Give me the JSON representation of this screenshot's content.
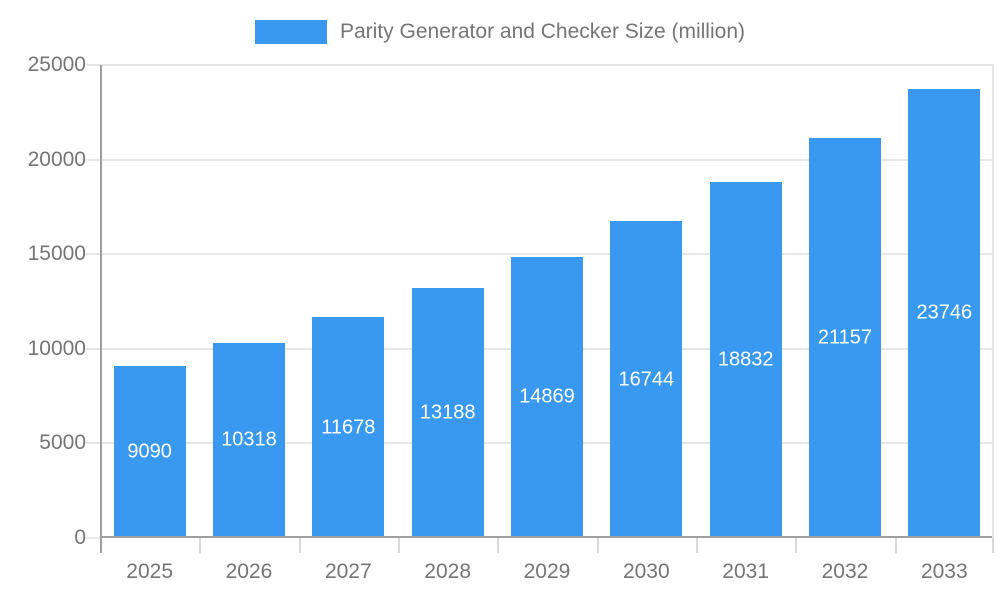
{
  "chart_data": {
    "type": "bar",
    "title": "Parity Generator and Checker Size (million)",
    "categories": [
      "2025",
      "2026",
      "2027",
      "2028",
      "2029",
      "2030",
      "2031",
      "2032",
      "2033"
    ],
    "values": [
      9090,
      10318,
      11678,
      13188,
      14869,
      16744,
      18832,
      21157,
      23746
    ],
    "xlabel": "",
    "ylabel": "",
    "ylim": [
      0,
      25000
    ],
    "ytick_step": 5000,
    "ytick_labels": [
      "0",
      "5000",
      "10000",
      "15000",
      "20000",
      "25000"
    ],
    "legend_position": "top-center",
    "grid": true,
    "bar_value_labels_inside": true,
    "colors": {
      "bar": "#3999F0",
      "bar_label": "#FFFFFF",
      "axis_text": "#757575",
      "grid_line": "#E6E6E6",
      "minor_tick": "#D9D9D9",
      "axis_line": "#9E9E9E",
      "background": "#FFFFFF"
    }
  }
}
